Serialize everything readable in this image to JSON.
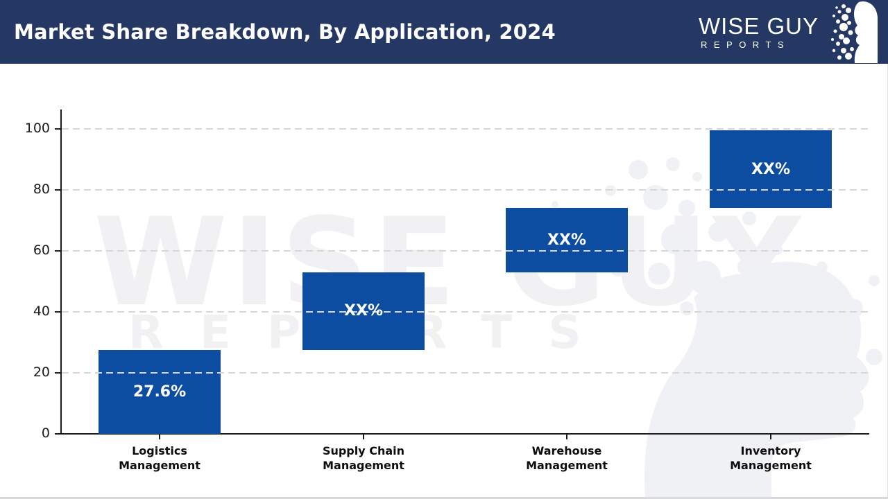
{
  "header": {
    "title": "Market Share Breakdown, By Application, 2024",
    "logo": {
      "name": "WISE GUY",
      "tagline": "REPORTS"
    }
  },
  "watermark": {
    "line1": "WISE GUY",
    "line2": "REPORTS"
  },
  "colors": {
    "header_bg": "#243863",
    "bar": "#0c4da2",
    "bar_label": "#ffffff",
    "grid": "#d8d8d8",
    "axis": "#1c1c1c",
    "watermark": "#f1f1f4"
  },
  "chart_data": {
    "type": "bar",
    "subtype": "waterfall",
    "title": "Market Share Breakdown, By Application, 2024",
    "xlabel": "",
    "ylabel": "",
    "categories": [
      "Logistics Management",
      "Supply Chain Management",
      "Warehouse Management",
      "Inventory Management"
    ],
    "category_lines": [
      [
        "Logistics",
        "Management"
      ],
      [
        "Supply Chain",
        "Management"
      ],
      [
        "Warehouse",
        "Management"
      ],
      [
        "Inventory",
        "Management"
      ]
    ],
    "segments": [
      {
        "start": 0,
        "end": 27.6,
        "label": "27.6%"
      },
      {
        "start": 27.6,
        "end": 53,
        "label": "XX%"
      },
      {
        "start": 53,
        "end": 74,
        "label": "XX%"
      },
      {
        "start": 74,
        "end": 99.5,
        "label": "XX%"
      }
    ],
    "yticks": [
      0,
      20,
      40,
      60,
      80,
      100
    ],
    "ylim": [
      0,
      106
    ],
    "grid": "dashed-horizontal",
    "legend": "none",
    "bar_color": "#0c4da2"
  }
}
